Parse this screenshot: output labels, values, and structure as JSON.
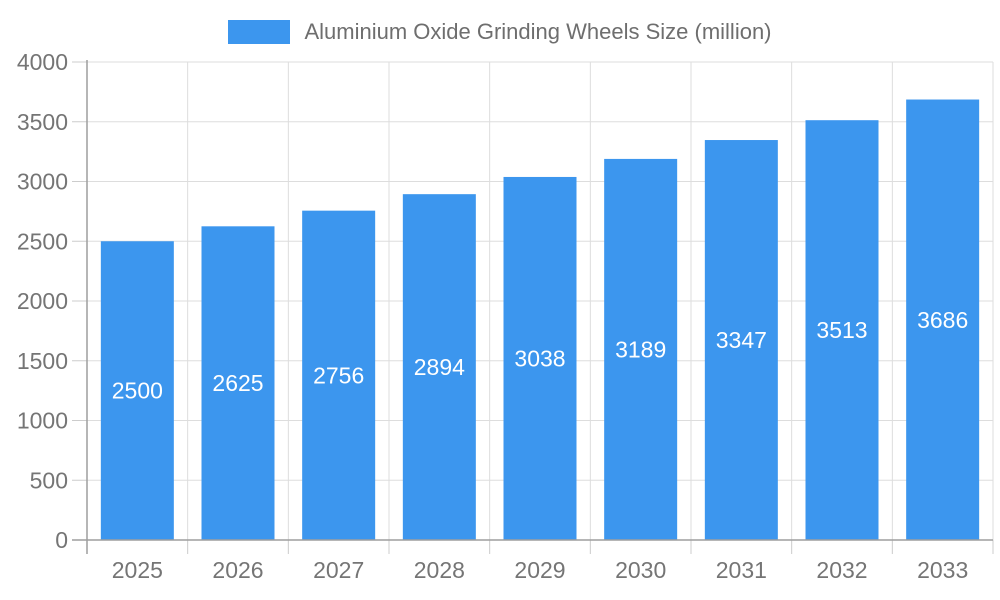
{
  "legend": {
    "label": "Aluminium Oxide Grinding Wheels Size (million)"
  },
  "chart_data": {
    "type": "bar",
    "title": "Aluminium Oxide Grinding Wheels Size (million)",
    "categories": [
      "2025",
      "2026",
      "2027",
      "2028",
      "2029",
      "2030",
      "2031",
      "2032",
      "2033"
    ],
    "series": [
      {
        "name": "Aluminium Oxide Grinding Wheels Size (million)",
        "values": [
          2500,
          2625,
          2756,
          2894,
          3038,
          3189,
          3347,
          3513,
          3686
        ]
      }
    ],
    "value_labels_shown": true,
    "xlabel": "",
    "ylabel": "",
    "ylim": [
      0,
      4000
    ],
    "y_ticks": [
      0,
      500,
      1000,
      1500,
      2000,
      2500,
      3000,
      3500,
      4000
    ],
    "grid": "on",
    "legend_position": "top-center"
  },
  "colors": {
    "bar_fill": "#3C96EE",
    "bar_value_label": "#ffffff",
    "axis_label": "#757575",
    "legend_text": "#6e6e6e",
    "gridline": "#dddddd",
    "axis_line": "#9e9e9e",
    "tick_line": "#cccccc",
    "background": "#ffffff"
  }
}
